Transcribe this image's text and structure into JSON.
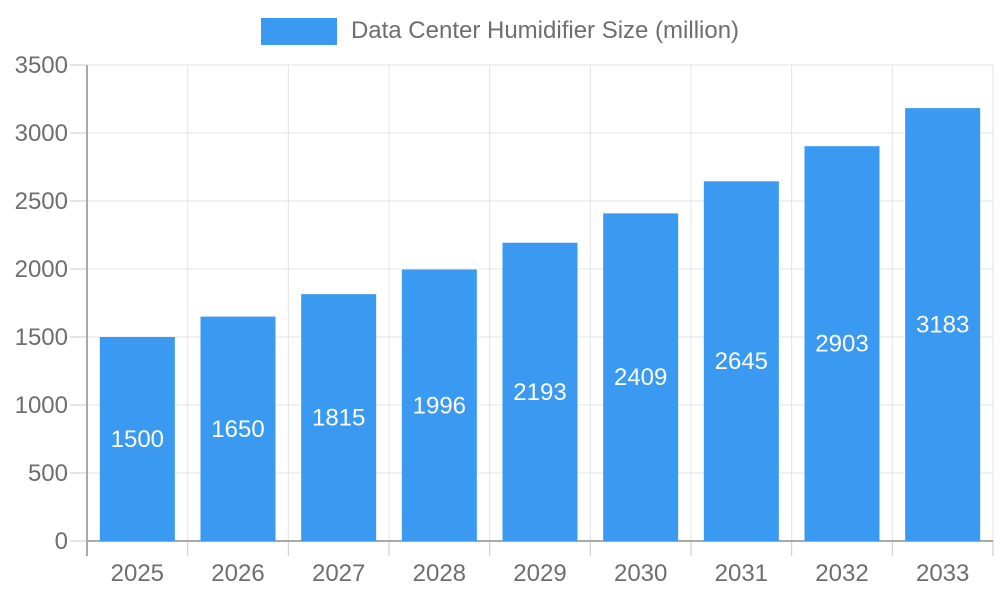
{
  "legend": {
    "label": "Data Center Humidifier Size (million)"
  },
  "chart_data": {
    "type": "bar",
    "title": "Data Center Humidifier Size (million)",
    "categories": [
      "2025",
      "2026",
      "2027",
      "2028",
      "2029",
      "2030",
      "2031",
      "2032",
      "2033"
    ],
    "series": [
      {
        "name": "Data Center Humidifier Size (million)",
        "values": [
          1500,
          1650,
          1815,
          1996,
          2193,
          2409,
          2645,
          2903,
          3183
        ]
      }
    ],
    "value_labels": "inside-center",
    "xlabel": "",
    "ylabel": "",
    "ylim": [
      0,
      3500
    ],
    "ytick_step": 500,
    "grid": true,
    "legend_position": "top-center",
    "colors": {
      "bar": "#3A99F0",
      "bar_label": "#FFFFFF",
      "axis_text": "#6E6E6E",
      "grid_line": "#E3E3E3",
      "tick_line": "#C9C9C9",
      "axis_line": "#A9A9A9",
      "background": "#FFFFFF"
    }
  }
}
